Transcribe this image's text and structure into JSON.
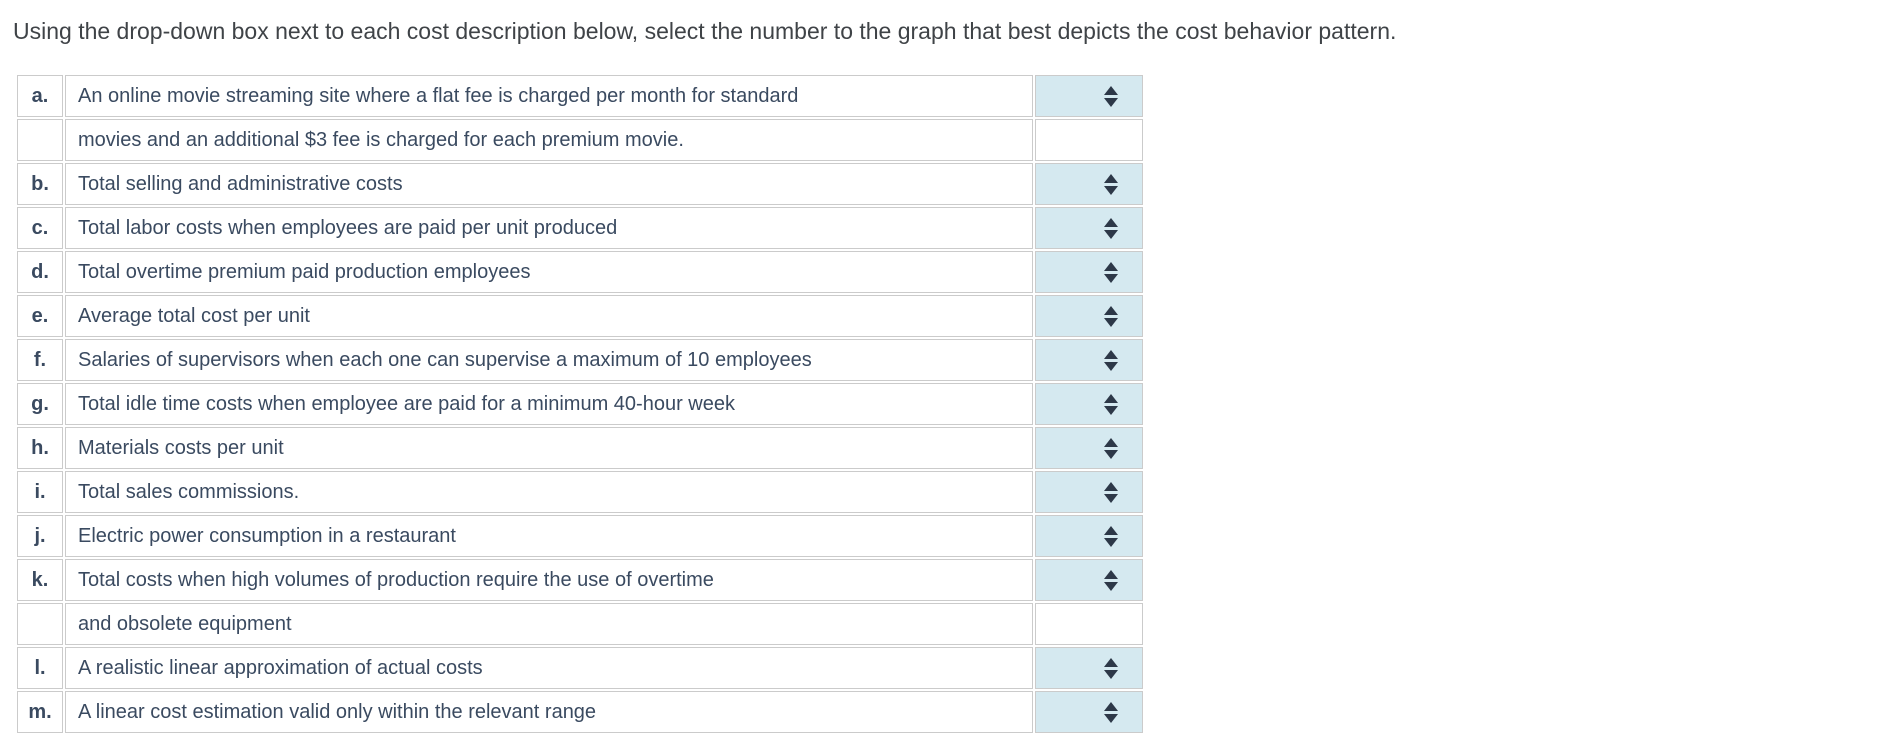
{
  "prompt": "Using the drop-down box next to each cost description below, select the number to the graph that best depicts the cost behavior pattern.",
  "table": {
    "dropdown_icon": "up-down-arrows",
    "dropdown_selected_value": "",
    "rows": [
      {
        "letter": "a.",
        "text": "An online movie streaming site where a flat fee is charged per month for standard",
        "dropdown": true
      },
      {
        "letter": "",
        "text": "movies and an additional $3 fee is charged for each premium movie.",
        "dropdown": false
      },
      {
        "letter": "b.",
        "text": "Total selling and administrative costs",
        "dropdown": true
      },
      {
        "letter": "c.",
        "text": "Total labor costs when employees are paid per unit produced",
        "dropdown": true
      },
      {
        "letter": "d.",
        "text": "Total overtime premium paid production employees",
        "dropdown": true
      },
      {
        "letter": "e.",
        "text": "Average total cost per unit",
        "dropdown": true
      },
      {
        "letter": "f.",
        "text": "Salaries of supervisors when each one can supervise a maximum of 10 employees",
        "dropdown": true
      },
      {
        "letter": "g.",
        "text": "Total idle time costs when employee are paid for a minimum 40-hour week",
        "dropdown": true
      },
      {
        "letter": "h.",
        "text": "Materials costs per unit",
        "dropdown": true
      },
      {
        "letter": "i.",
        "text": "Total sales commissions.",
        "dropdown": true
      },
      {
        "letter": "j.",
        "text": "Electric power consumption in a restaurant",
        "dropdown": true
      },
      {
        "letter": "k.",
        "text": "Total costs when high volumes of production require the use of overtime",
        "dropdown": true
      },
      {
        "letter": "",
        "text": "and obsolete equipment",
        "dropdown": false
      },
      {
        "letter": "l.",
        "text": "A realistic linear approximation of actual costs",
        "dropdown": true
      },
      {
        "letter": "m.",
        "text": "A linear cost estimation valid only within the relevant range",
        "dropdown": true
      }
    ]
  },
  "colors": {
    "dropdown_bg": "#d5e9f0",
    "cell_border": "#cbcbcb",
    "body_text": "#3a4a60",
    "prompt_text": "#3f4347",
    "arrow": "#2d3848",
    "page_bg": "#ffffff"
  }
}
